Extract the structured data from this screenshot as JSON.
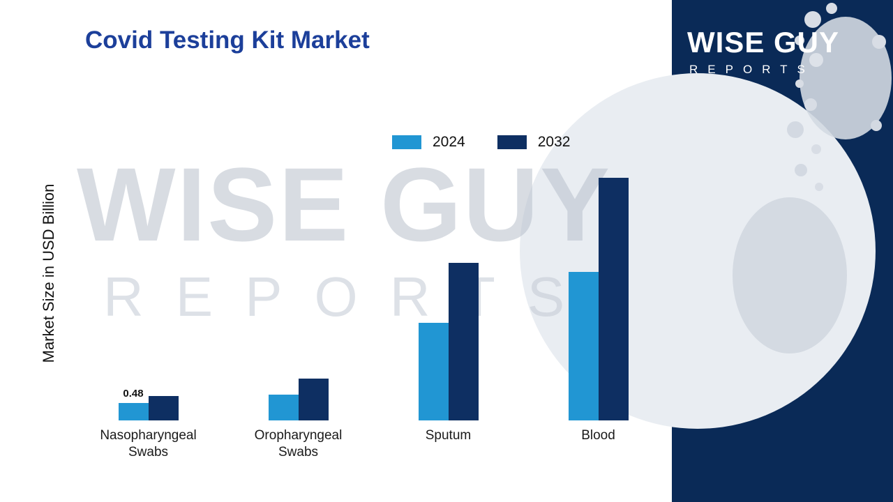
{
  "title": "Covid Testing Kit Market",
  "ylabel": "Market Size in USD Billion",
  "watermark": {
    "line1": "WISE GUY",
    "line2": "REPORTS"
  },
  "logo": {
    "line1": "WISE GUY",
    "line2": "REPORTS"
  },
  "icons": {
    "logo_head": "head-silhouette-icon",
    "dots": "dots-pattern-icon"
  },
  "colors": {
    "title": "#1c3f9a",
    "bar_2024": "#2196d3",
    "bar_2032": "#0e2f62",
    "right_panel": "#0a2a57",
    "watermark": "#c3cad4",
    "background_circle": "#e9edf2"
  },
  "chart_data": {
    "type": "bar",
    "categories": [
      "Nasopharyngeal Swabs",
      "Oropharyngeal Swabs",
      "Sputum",
      "Blood"
    ],
    "series": [
      {
        "name": "2024",
        "color": "#2196d3",
        "values": [
          0.48,
          0.72,
          2.7,
          4.1
        ]
      },
      {
        "name": "2032",
        "color": "#0e2f62",
        "values": [
          0.67,
          1.15,
          4.35,
          6.7
        ]
      }
    ],
    "annotations": [
      {
        "series": 0,
        "category": 0,
        "text": "0.48"
      }
    ],
    "title": "Covid Testing Kit Market",
    "xlabel": "",
    "ylabel": "Market Size in USD Billion",
    "ylim": [
      0,
      7
    ],
    "grid": false,
    "legend_position": "top"
  }
}
